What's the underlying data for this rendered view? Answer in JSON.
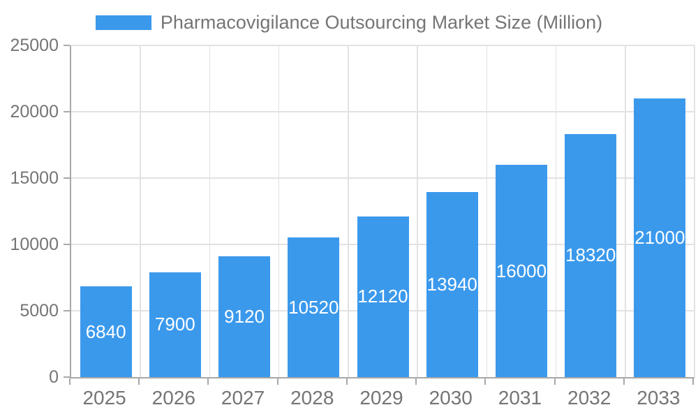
{
  "chart_data": {
    "type": "bar",
    "title": "Pharmacovigilance Outsourcing Market Size (Million)",
    "categories": [
      "2025",
      "2026",
      "2027",
      "2028",
      "2029",
      "2030",
      "2031",
      "2032",
      "2033"
    ],
    "values": [
      6840,
      7900,
      9120,
      10520,
      12120,
      13940,
      16000,
      18320,
      21000
    ],
    "value_labels": [
      "6840",
      "7900",
      "9120",
      "10520",
      "12120",
      "13940",
      "16000",
      "18320",
      "21000"
    ],
    "ylim": [
      0,
      25000
    ],
    "yticks": [
      0,
      5000,
      10000,
      15000,
      20000,
      25000
    ],
    "ytick_labels": [
      "0",
      "5000",
      "10000",
      "15000",
      "20000",
      "25000"
    ],
    "xlabel": "",
    "ylabel": "",
    "legend_position": "top",
    "grid": "on",
    "colors": {
      "bar": "#3b99ec",
      "value_label": "#ffffff",
      "axis": "#a8a8a8",
      "gridline": "#e2e2e2",
      "tick_label": "#757575",
      "title": "#757575",
      "background": "#ffffff"
    }
  }
}
